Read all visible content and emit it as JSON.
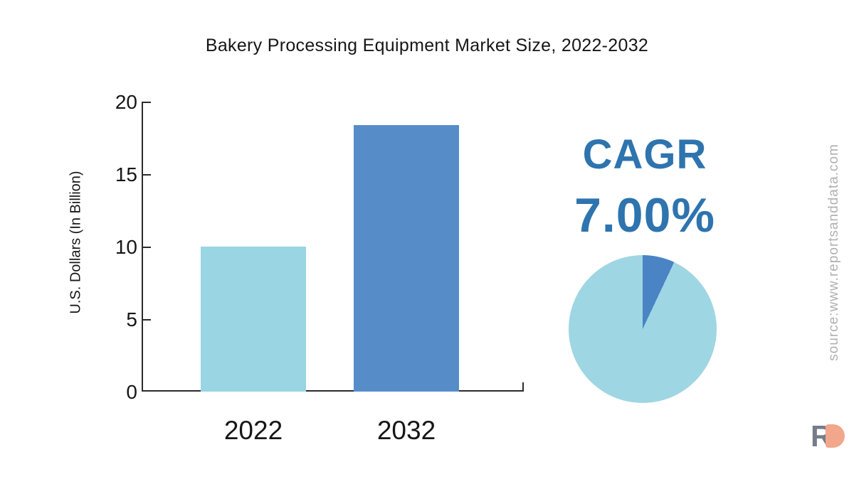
{
  "page": {
    "title": "Bakery Processing Equipment Market Size, 2022-2032",
    "source_note": "source:www.reportsanddata.com",
    "logo_text": "R"
  },
  "cagr": {
    "label": "CAGR",
    "value": "7.00%"
  },
  "colors": {
    "bar_2022": "#99d5e2",
    "bar_2032": "#568dc8",
    "pie_cagr_slice": "#4a84c5",
    "pie_remainder": "#9fd6e3",
    "cagr_text": "#2e74ae",
    "axis": "#2b2b2b",
    "text": "#161616",
    "source_text": "#b0b0b0",
    "logo_gray": "#767d88",
    "logo_salmon": "#f2a78c"
  },
  "chart_data": [
    {
      "type": "bar",
      "title": "Bakery Processing Equipment Market Size, 2022-2032",
      "categories": [
        "2022",
        "2032"
      ],
      "values": [
        10,
        18.4
      ],
      "bar_colors": [
        "#99d5e2",
        "#568dc8"
      ],
      "xlabel": "",
      "ylabel": "U.S. Dollars (In Billion)",
      "ylim": [
        0,
        20
      ],
      "yticks": [
        0,
        5,
        10,
        15,
        20
      ],
      "grid": false,
      "legend": false
    },
    {
      "type": "pie",
      "title": "CAGR 7.00%",
      "slices": [
        {
          "label": "CAGR 7.00%",
          "value": 7,
          "color": "#4a84c5"
        },
        {
          "label": "remainder",
          "value": 93,
          "color": "#9fd6e3"
        }
      ],
      "start_angle_deg": 0,
      "direction": "clockwise",
      "legend_position": "none"
    }
  ]
}
